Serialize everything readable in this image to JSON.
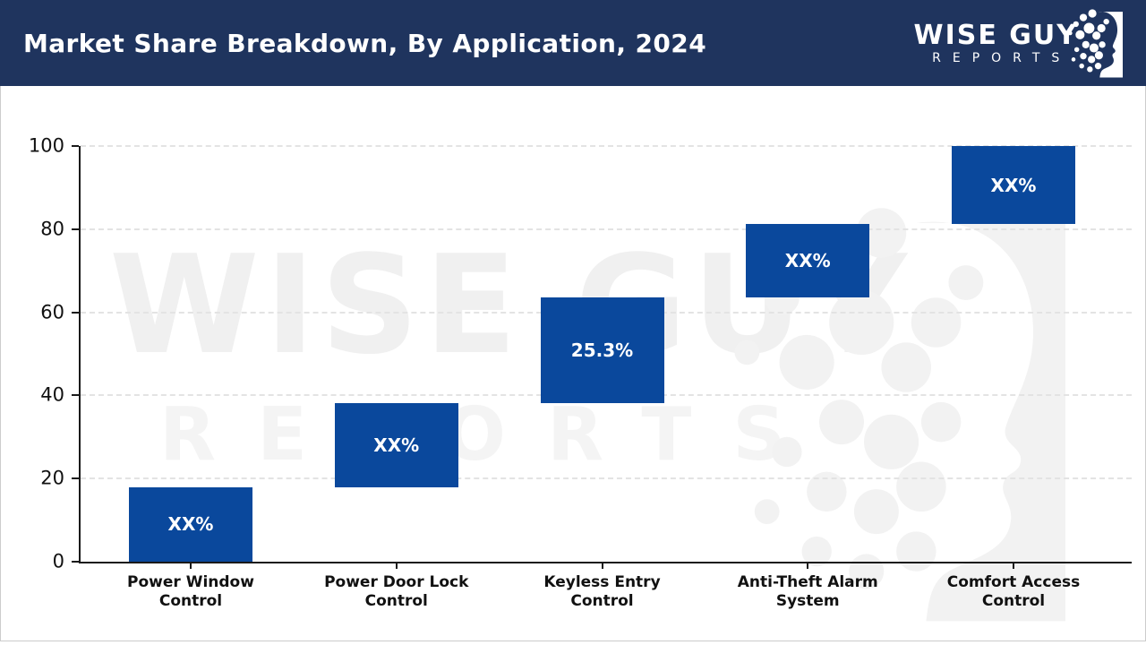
{
  "header": {
    "title": "Market Share Breakdown, By Application, 2024",
    "background_color": "#1f345e",
    "logo": {
      "name": "WISE GUY",
      "sub": "REPORTS"
    }
  },
  "watermark": {
    "line1": "WISE GUY",
    "line2": "REPORTS"
  },
  "chart_data": {
    "type": "bar",
    "variant": "waterfall",
    "title": "Market Share Breakdown, By Application, 2024",
    "categories": [
      "Power Window Control",
      "Power Door Lock Control",
      "Keyless Entry Control",
      "Anti-Theft Alarm System",
      "Comfort Access Control"
    ],
    "category_lines": [
      [
        "Power Window",
        "Control"
      ],
      [
        "Power Door Lock",
        "Control"
      ],
      [
        "Keyless Entry",
        "Control"
      ],
      [
        "Anti-Theft Alarm",
        "System"
      ],
      [
        "Comfort Access",
        "Control"
      ]
    ],
    "segments": [
      {
        "category": "Power Window Control",
        "start": 0,
        "end": 17.9,
        "label": "XX%"
      },
      {
        "category": "Power Door Lock Control",
        "start": 17.9,
        "end": 38.2,
        "label": "XX%"
      },
      {
        "category": "Keyless Entry Control",
        "start": 38.2,
        "end": 63.5,
        "label": "25.3%"
      },
      {
        "category": "Anti-Theft Alarm System",
        "start": 63.5,
        "end": 81.2,
        "label": "XX%"
      },
      {
        "category": "Comfort Access Control",
        "start": 81.2,
        "end": 100,
        "label": "XX%"
      }
    ],
    "bar_color": "#0a489c",
    "bar_label_color": "#ffffff",
    "xlabel": "",
    "ylabel": "",
    "ylim": [
      0,
      100
    ],
    "yticks": [
      0,
      20,
      40,
      60,
      80,
      100
    ],
    "grid": {
      "axis": "y",
      "style": "dashed",
      "color": "#e3e3e3"
    },
    "legend": null
  }
}
